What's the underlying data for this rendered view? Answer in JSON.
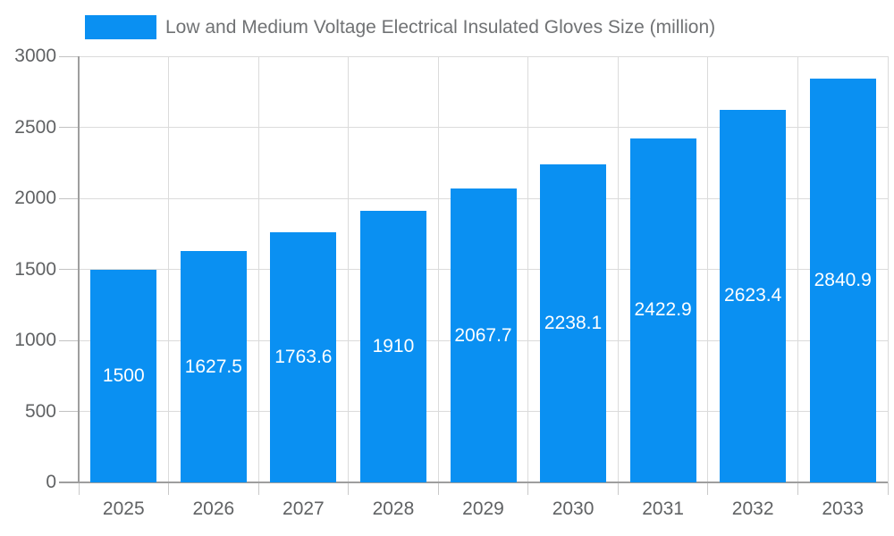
{
  "chart_data": {
    "type": "bar",
    "title": "Low and Medium Voltage Electrical Insulated Gloves Size (million)",
    "legend_entries": [
      "Low and Medium Voltage Electrical Insulated Gloves Size (million)"
    ],
    "legend_position": "top-left",
    "categories": [
      "2025",
      "2026",
      "2027",
      "2028",
      "2029",
      "2030",
      "2031",
      "2032",
      "2033"
    ],
    "series": [
      {
        "name": "Low and Medium Voltage Electrical Insulated Gloves Size (million)",
        "values": [
          1500,
          1627.5,
          1763.6,
          1910,
          2067.7,
          2238.1,
          2422.9,
          2623.4,
          2840.9
        ]
      }
    ],
    "bar_labels": [
      "1500",
      "1627.5",
      "1763.6",
      "1910",
      "2067.7",
      "2238.1",
      "2422.9",
      "2623.4",
      "2840.9"
    ],
    "xlabel": "",
    "ylabel": "",
    "ylim": [
      0,
      3000
    ],
    "yticks": [
      0,
      500,
      1000,
      1500,
      2000,
      2500,
      3000
    ],
    "ytick_labels": [
      "0",
      "500",
      "1000",
      "1500",
      "2000",
      "2500",
      "3000"
    ],
    "grid": true,
    "colors": {
      "bar": "#0A90F2",
      "gridline": "#DBDBDB",
      "axis": "#9E9E9E",
      "tick": "#C2C2C2",
      "axis_text": "#606264",
      "legend_text": "#707274",
      "bar_label_text": "#FFFFFF",
      "background": "#FFFFFF"
    }
  }
}
